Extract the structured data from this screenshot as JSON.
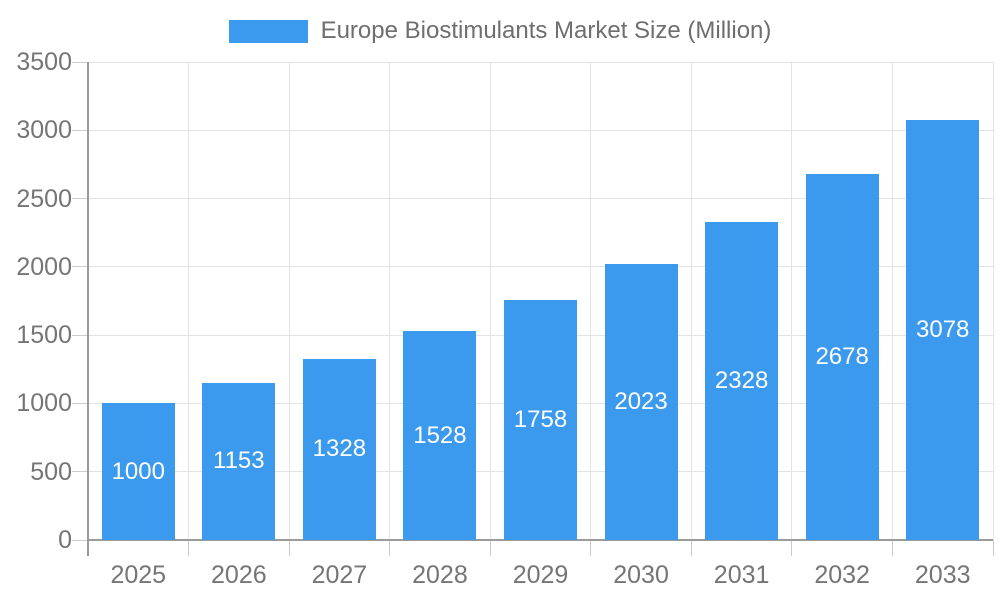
{
  "chart_data": {
    "type": "bar",
    "title": "Europe Biostimulants Market Size (Million)",
    "categories": [
      "2025",
      "2026",
      "2027",
      "2028",
      "2029",
      "2030",
      "2031",
      "2032",
      "2033"
    ],
    "values": [
      1000,
      1153,
      1328,
      1528,
      1758,
      2023,
      2328,
      2678,
      3078
    ],
    "xlabel": "",
    "ylabel": "",
    "ylim": [
      0,
      3500
    ],
    "ytick_step": 500,
    "ytick_labels": [
      "0",
      "500",
      "1000",
      "1500",
      "2000",
      "2500",
      "3000",
      "3500"
    ],
    "legend_position": "top",
    "grid": true,
    "colors": {
      "bar": "#3b99ee",
      "bar_value_label": "#ffffff",
      "axis_line": "#9a9a9a",
      "gridline": "#e3e3e3",
      "tick": "#cccccc",
      "tick_label_text": "#757575",
      "legend_text": "#6e6e6e"
    }
  }
}
